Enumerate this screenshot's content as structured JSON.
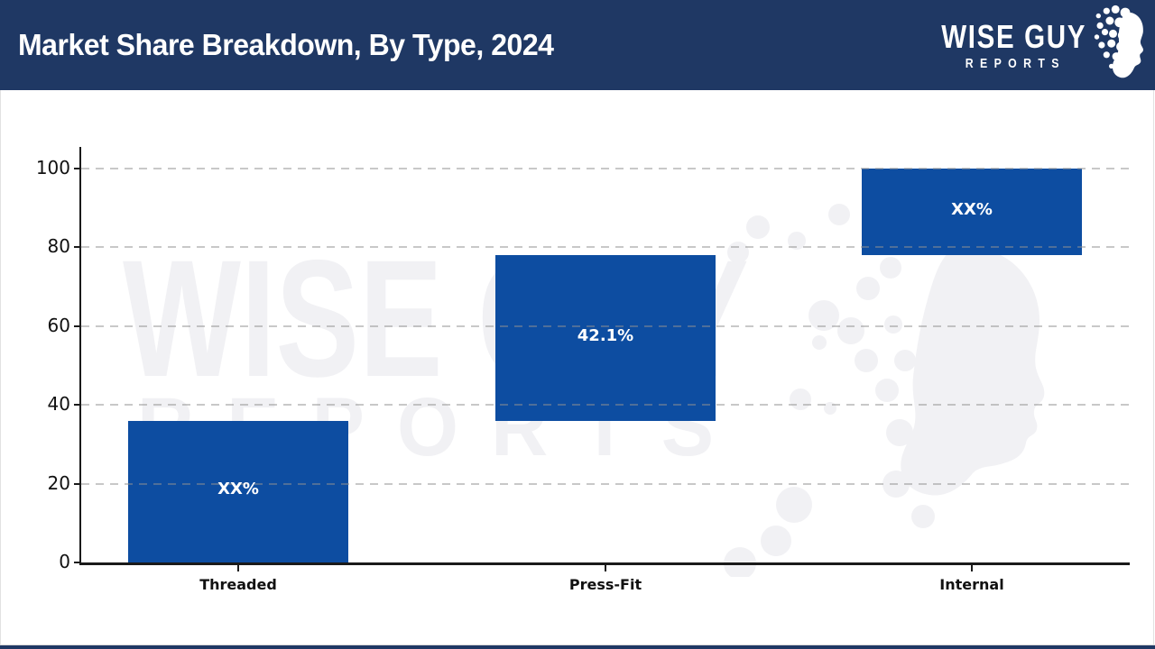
{
  "header": {
    "title": "Market Share Breakdown, By Type, 2024",
    "logo": {
      "line1": "WISE GUY",
      "line2": "REPORTS"
    }
  },
  "watermark": {
    "line1": "WISE GUY",
    "line2": "REPORTS"
  },
  "chart_data": {
    "type": "bar",
    "subtype": "waterfall",
    "title": "Market Share Breakdown, By Type, 2024",
    "categories": [
      "Threaded",
      "Press-Fit",
      "Internal"
    ],
    "segments": [
      {
        "category": "Threaded",
        "start": 0,
        "end": 36,
        "value": 36,
        "label": "XX%"
      },
      {
        "category": "Press-Fit",
        "start": 36,
        "end": 78.1,
        "value": 42.1,
        "label": "42.1%"
      },
      {
        "category": "Internal",
        "start": 78.1,
        "end": 100,
        "value": 21.9,
        "label": "XX%"
      }
    ],
    "yticks": [
      0,
      20,
      40,
      60,
      80,
      100
    ],
    "ylim": [
      0,
      105.5
    ],
    "xlabel": "",
    "ylabel": "",
    "grid": "horizontal-dashed",
    "legend": "none",
    "bar_color": "#0d4da1",
    "axis_color": "#1a1a1a",
    "gridline_color": "#c9c9c9",
    "header_color": "#1f3864",
    "label_color": "#ffffff"
  }
}
